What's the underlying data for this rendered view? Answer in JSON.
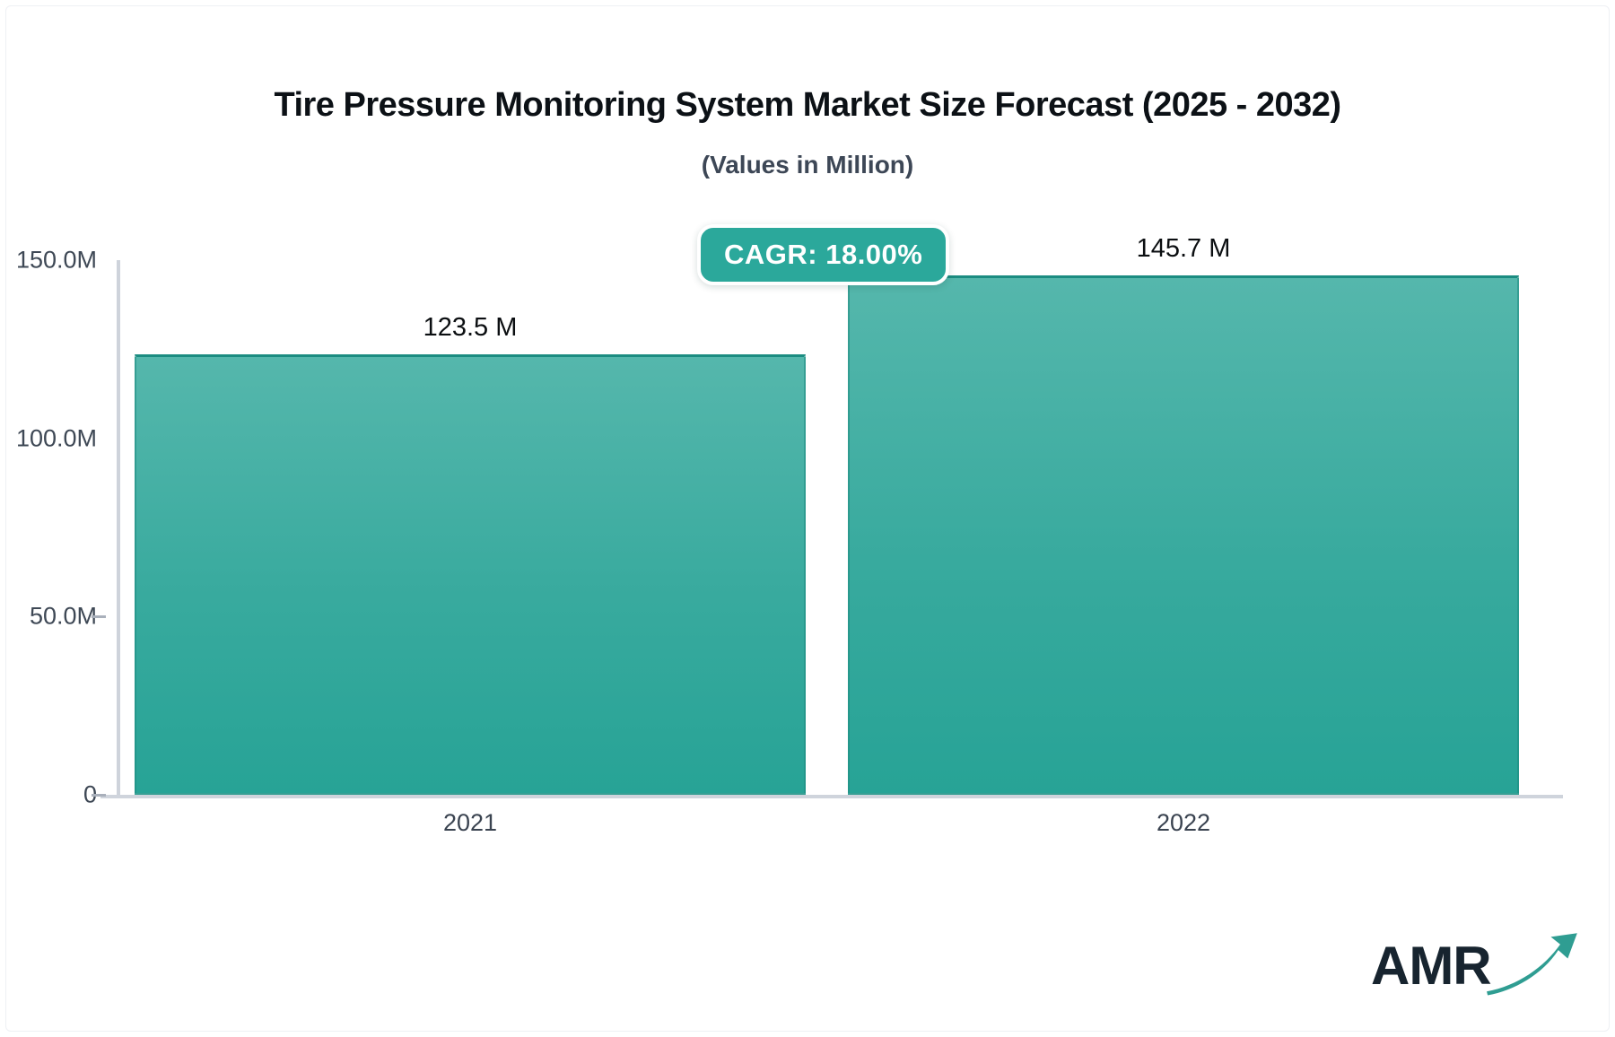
{
  "title": "Tire Pressure Monitoring System Market Size Forecast (2025 - 2032)",
  "subtitle": "(Values in Million)",
  "cagr_badge": "CAGR: 18.00%",
  "logo": {
    "text": "AMR",
    "arrow_icon": "growth-arrow-icon"
  },
  "colors": {
    "bar_top": "#55b7ac",
    "bar_bottom": "#27a396",
    "bar_border": "#1b8c81",
    "badge_bg": "#2ba89b",
    "axis_line": "#ced3db",
    "axis_text": "#3e4855",
    "title_text": "#0c1116",
    "logo_text": "#17242f",
    "logo_arrow": "#2f9d92"
  },
  "chart_data": {
    "type": "bar",
    "title": "Tire Pressure Monitoring System Market Size Forecast (2025 - 2032)",
    "subtitle": "(Values in Million)",
    "categories": [
      "2021",
      "2022"
    ],
    "values": [
      123.5,
      145.7
    ],
    "value_labels": [
      "123.5 M",
      "145.7 M"
    ],
    "unit": "Million",
    "ylim": [
      0,
      150
    ],
    "yticks": [
      {
        "label": "150.0M",
        "value": 150,
        "dash": false
      },
      {
        "label": "100.0M",
        "value": 100,
        "dash": false
      },
      {
        "label": "50.0M",
        "value": 50,
        "dash": true
      },
      {
        "label": "0",
        "value": 0,
        "dash": true
      }
    ],
    "annotation": "CAGR: 18.00%",
    "grid": false,
    "legend": false
  }
}
